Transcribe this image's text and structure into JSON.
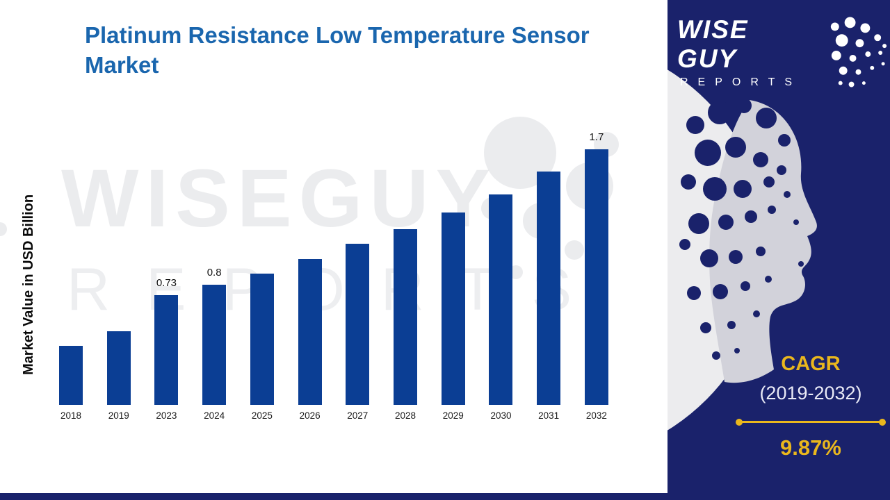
{
  "page": {
    "title": "Platinum Resistance Low Temperature Sensor Market",
    "watermark_line1": "WISEGUY",
    "watermark_line2": "REPORTS"
  },
  "logo": {
    "line1": "WISE GUY",
    "line2": "REPORTS"
  },
  "cagr": {
    "label": "CAGR",
    "range": "(2019-2032)",
    "value": "9.87%"
  },
  "chart_data": {
    "type": "bar",
    "title": "Platinum Resistance Low Temperature Sensor Market",
    "ylabel": "Market Value in USD Billion",
    "xlabel": "",
    "categories": [
      "2018",
      "2019",
      "2023",
      "2024",
      "2025",
      "2026",
      "2027",
      "2028",
      "2029",
      "2030",
      "2031",
      "2032"
    ],
    "values": [
      0.39,
      0.49,
      0.73,
      0.8,
      0.87,
      0.97,
      1.07,
      1.17,
      1.28,
      1.4,
      1.55,
      1.7
    ],
    "labeled_points": {
      "2023": "0.73",
      "2024": "0.8",
      "2032": "1.7"
    },
    "ylim": [
      0,
      1.8
    ],
    "grid": false,
    "legend": false,
    "bar_color": "#0b3e94"
  },
  "colors": {
    "title_blue": "#1a66ae",
    "panel_navy": "#1a226b",
    "accent_gold": "#eab71d",
    "bar_blue": "#0b3e94"
  }
}
